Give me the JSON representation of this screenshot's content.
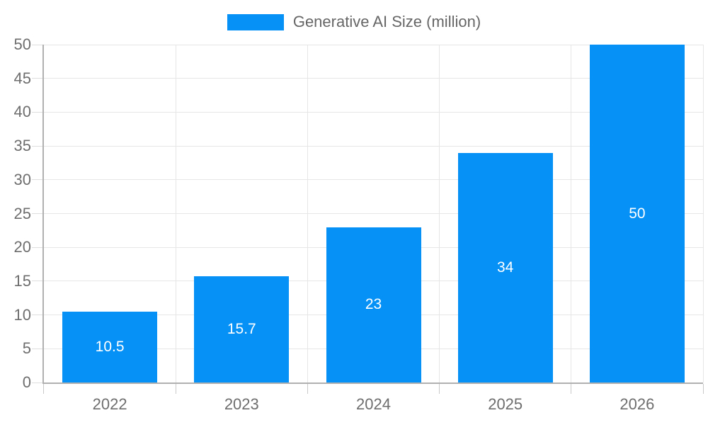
{
  "chart_data": {
    "type": "bar",
    "title": "",
    "legend": "Generative AI Size (million)",
    "legend_position": "top-center",
    "categories": [
      "2022",
      "2023",
      "2024",
      "2025",
      "2026"
    ],
    "values": [
      10.5,
      15.7,
      23,
      34,
      50
    ],
    "value_labels": [
      "10.5",
      "15.7",
      "23",
      "34",
      "50"
    ],
    "xlabel": "",
    "ylabel": "",
    "ylim": [
      0,
      50
    ],
    "yticks": [
      0,
      5,
      10,
      15,
      20,
      25,
      30,
      35,
      40,
      45,
      50
    ],
    "grid": true,
    "colors": {
      "bar": "#0591f5",
      "grid": "#e6e6e6",
      "axis": "#b0b0b0",
      "axis_text": "#6e6e6e",
      "legend_text": "#666666",
      "data_label": "#ffffff"
    }
  }
}
